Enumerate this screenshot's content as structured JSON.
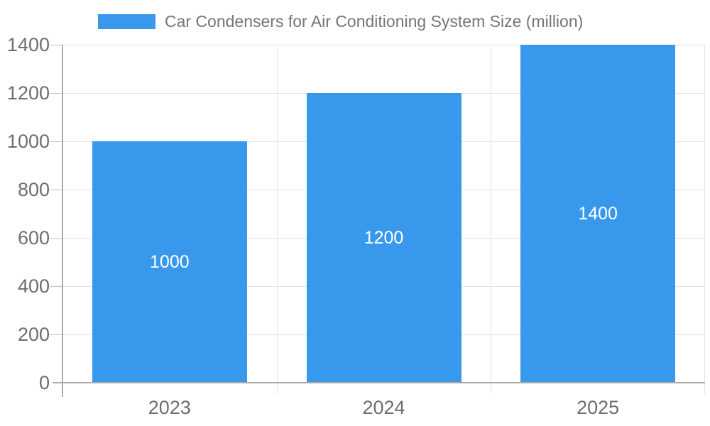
{
  "legend": {
    "label": "Car Condensers for Air Conditioning System Size (million)"
  },
  "chart_data": {
    "type": "bar",
    "title": "Car Condensers for Air Conditioning System Size (million)",
    "categories": [
      "2023",
      "2024",
      "2025"
    ],
    "values": [
      1000,
      1200,
      1400
    ],
    "data_labels": [
      "1000",
      "1200",
      "1400"
    ],
    "series": [
      {
        "name": "Car Condensers for Air Conditioning System Size (million)",
        "values": [
          1000,
          1200,
          1400
        ]
      }
    ],
    "xlabel": "",
    "ylabel": "",
    "ylim": [
      0,
      1400
    ],
    "ytick_step": 200,
    "yticks": [
      0,
      200,
      400,
      600,
      800,
      1000,
      1200,
      1400
    ],
    "legend_position": "top",
    "grid": true,
    "colors": {
      "bar": "#3899EC",
      "bar_label": "#FFFFFF",
      "grid_line": "#E3E3E3",
      "axis_line": "#ABABAB",
      "tick_line": "#C4C4C4",
      "axis_text": "#6E6E6E",
      "title_text": "#757575",
      "background": "#FFFFFF"
    }
  }
}
